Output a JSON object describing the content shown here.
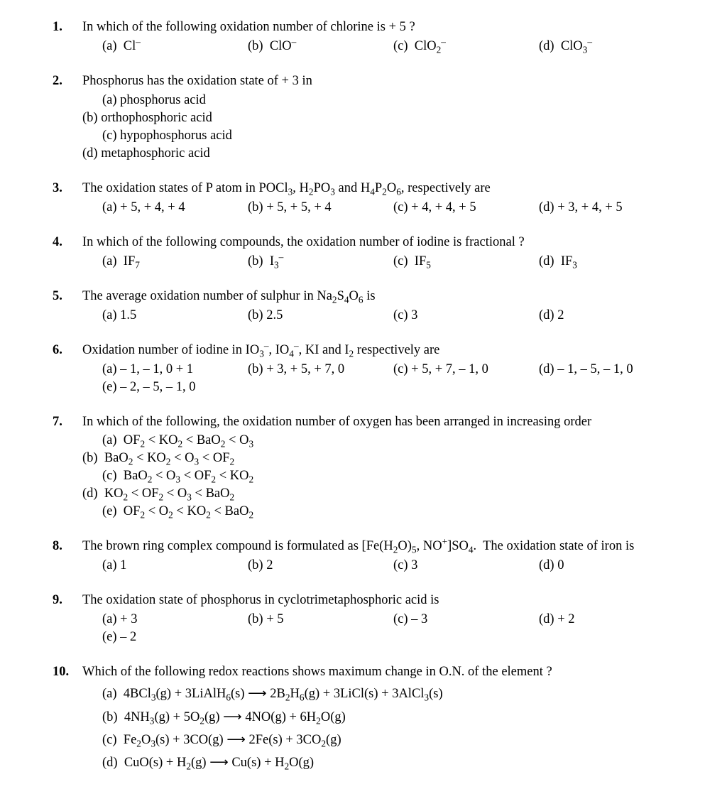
{
  "text_color": "#000000",
  "background_color": "#ffffff",
  "font_family": "Times New Roman",
  "base_font_size_pt": 14,
  "q1": {
    "num": "1.",
    "stem": "In which of the following oxidation number of chlorine is + 5 ?",
    "a": "(a)  Cl⁻",
    "b": "(b)  ClO⁻",
    "c": "(c)  ClO₂⁻",
    "d": "(d)  ClO₃⁻"
  },
  "q2": {
    "num": "2.",
    "stem": "Phosphorus has the oxidation state of + 3 in",
    "a": "(a)  phosphorus acid",
    "b": "(b)  orthophosphoric acid",
    "c": "(c)  hypophosphorus acid",
    "d": "(d)  metaphosphoric acid"
  },
  "q3": {
    "num": "3.",
    "stem": "The oxidation states of P atom in POCl₃, H₂PO₃ and H₄P₂O₆, respectively are",
    "a": "(a)  + 5, + 4, + 4",
    "b": "(b)  + 5, + 5, + 4",
    "c": "(c)  + 4, + 4, + 5",
    "d": "(d)  + 3, + 4, + 5"
  },
  "q4": {
    "num": "4.",
    "stem": "In which of the following compounds, the oxidation number of iodine is fractional ?",
    "a": "(a)  IF₇",
    "b": "(b)  I₃⁻",
    "c": "(c)  IF₅",
    "d": "(d)  IF₃"
  },
  "q5": {
    "num": "5.",
    "stem": "The average oxidation number of sulphur in Na₂S₄O₆ is",
    "a": "(a)  1.5",
    "b": "(b)  2.5",
    "c": "(c)  3",
    "d": "(d)  2"
  },
  "q6": {
    "num": "6.",
    "stem": "Oxidation number of iodine in IO₃⁻, IO₄⁻, KI and I₂ respectively are",
    "a": "(a)  – 1, – 1, 0 + 1",
    "b": "(b)  + 3, + 5, + 7, 0",
    "c": "(c)  + 5, + 7, – 1, 0",
    "d": "(d)  – 1, – 5, – 1, 0",
    "e": "(e)  – 2, – 5, – 1, 0"
  },
  "q7": {
    "num": "7.",
    "stem": "In which of the following, the oxidation number of oxygen has been arranged in increasing order",
    "a": "(a)  OF₂ < KO₂ < BaO₂ < O₃",
    "b": "(b)  BaO₂ < KO₂ < O₃ < OF₂",
    "c": "(c)  BaO₂ < O₃ < OF₂ < KO₂",
    "d": "(d)  KO₂ < OF₂ < O₃ < BaO₂",
    "e": "(e)  OF₂ < O₂ < KO₂ < BaO₂"
  },
  "q8": {
    "num": "8.",
    "stem": "The brown ring complex compound is formulated as [Fe(H₂O)₅, NO⁺]SO₄.  The oxidation state of iron is",
    "a": "(a)  1",
    "b": "(b)  2",
    "c": "(c)  3",
    "d": "(d)  0"
  },
  "q9": {
    "num": "9.",
    "stem": "The oxidation state of phosphorus in cyclotrimetaphosphoric acid is",
    "a": "(a)  + 3",
    "b": "(b)  + 5",
    "c": "(c)  – 3",
    "d": "(d) + 2",
    "e": "(e)  – 2"
  },
  "q10": {
    "num": "10.",
    "stem": "Which of the following redox reactions shows maximum change in O.N. of the element ?",
    "a": "(a)  4BCl₃(g) + 3LiAlH₆(s) ⟶ 2B₂H₆(g) + 3LiCl(s) + 3AlCl₃(s)",
    "b": "(b)  4NH₃(g) + 5O₂(g) ⟶ 4NO(g) + 6H₂O(g)",
    "c": "(c)  Fe₂O₃(s) + 3CO(g) ⟶ 2Fe(s) + 3CO₂(g)",
    "d": "(d)  CuO(s) + H₂(g) ⟶ Cu(s) + H₂O(g)"
  }
}
